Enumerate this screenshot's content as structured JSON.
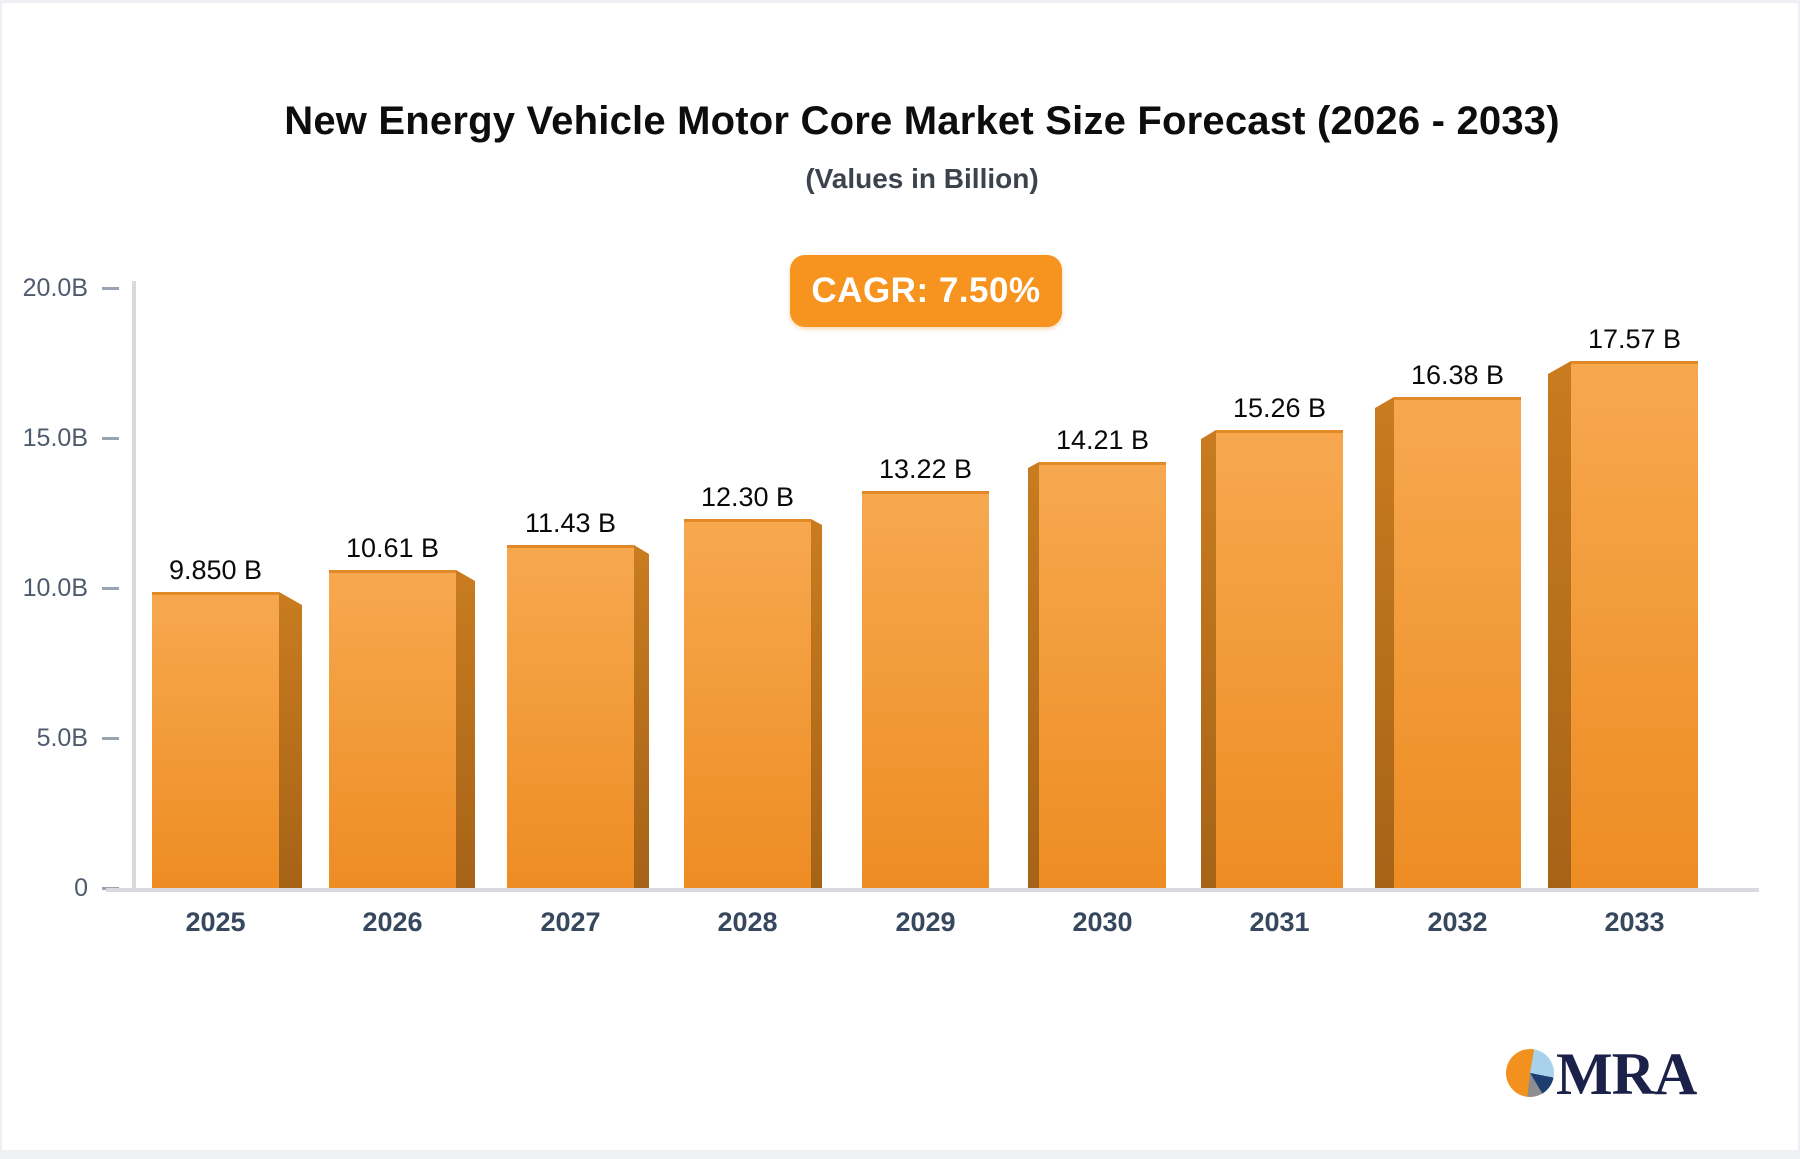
{
  "page": {
    "title": "New Energy Vehicle Motor Core Market Size Forecast (2026 - 2033)",
    "subtitle": "(Values in Billion)",
    "cagr_label": "CAGR: 7.50%"
  },
  "chart_data": {
    "type": "bar",
    "title": "New Energy Vehicle Motor Core Market Size Forecast (2026 - 2033)",
    "subtitle": "(Values in Billion)",
    "cagr_percent": "7.50%",
    "categories": [
      "2025",
      "2026",
      "2027",
      "2028",
      "2029",
      "2030",
      "2031",
      "2032",
      "2033"
    ],
    "values": [
      9.85,
      10.61,
      11.43,
      12.3,
      13.22,
      14.21,
      15.26,
      16.38,
      17.57
    ],
    "value_labels": [
      "9.850 B",
      "10.61 B",
      "11.43 B",
      "12.30 B",
      "13.22 B",
      "14.21 B",
      "15.26 B",
      "16.38 B",
      "17.57 B"
    ],
    "y_ticks": [
      {
        "label": "20.0B",
        "value": 20
      },
      {
        "label": "15.0B",
        "value": 15
      },
      {
        "label": "10.0B",
        "value": 10
      },
      {
        "label": "5.0B",
        "value": 5
      },
      {
        "label": "0",
        "value": 0
      }
    ],
    "ylim": [
      0,
      20
    ],
    "xlabel": "",
    "ylabel": "",
    "grid": "off",
    "legend": "none",
    "bar_color_top": "#f7a84f",
    "bar_color_bottom": "#ee8c23",
    "bar_side_color": "#b06a1b",
    "accent_color": "#f6941f",
    "axis_color": "#d8dade",
    "label_color": "#0a0a0a"
  },
  "logo": {
    "text": "MRA",
    "text_color": "#1b2148"
  }
}
